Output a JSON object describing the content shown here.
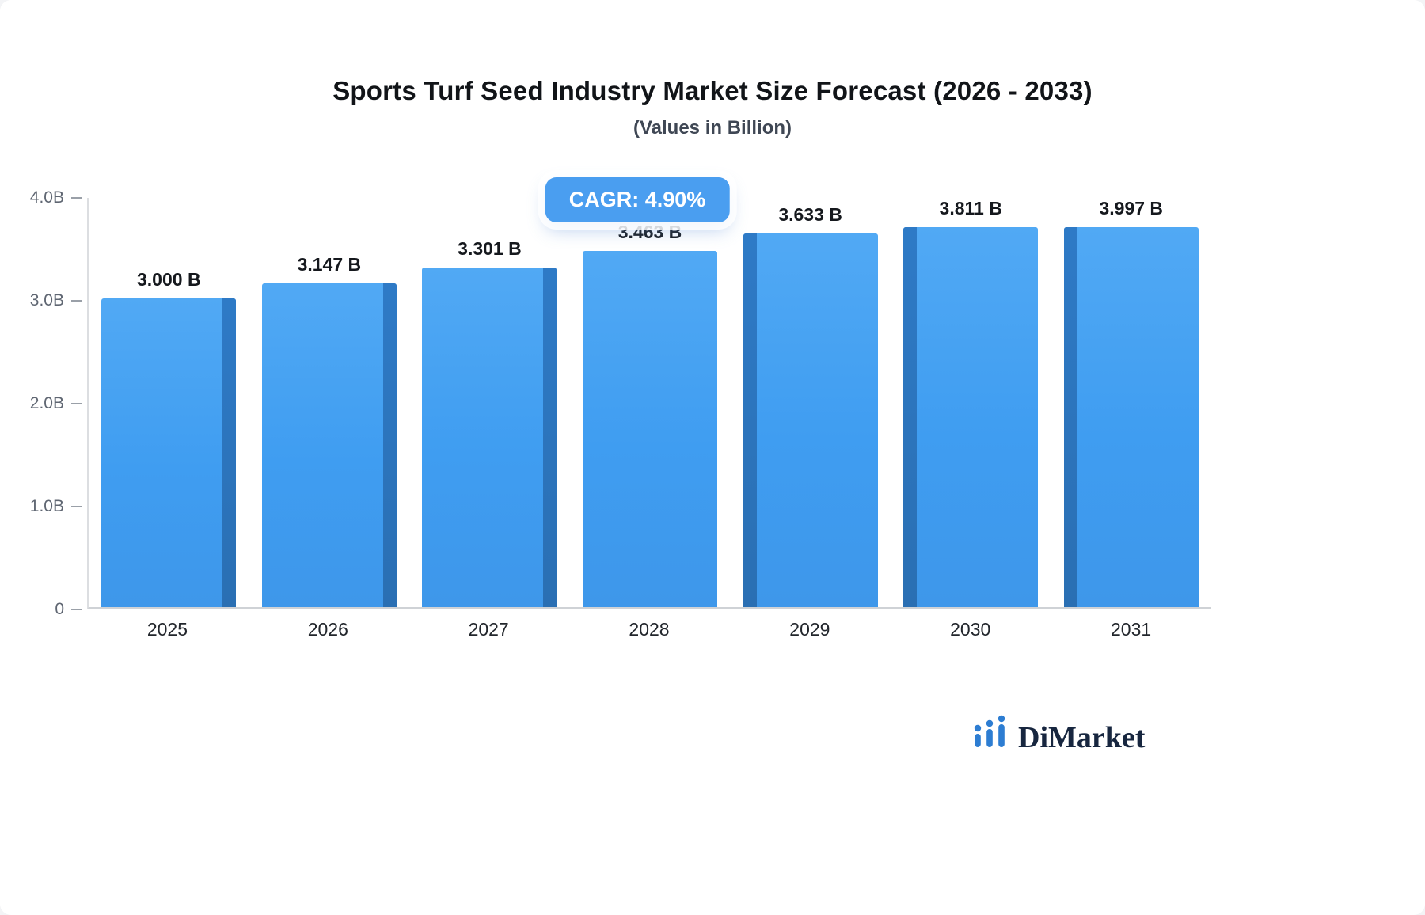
{
  "header": {
    "title": "Sports Turf Seed Industry Market Size Forecast (2026 - 2033)",
    "subtitle": "(Values in Billion)"
  },
  "badge": {
    "label": "CAGR: 4.90%"
  },
  "brand": {
    "name": "DiMarket",
    "icon": "bar-chart-logo-icon"
  },
  "colors": {
    "bar": "#3f9df1",
    "bar_edge": "#2a6fb3",
    "badge_bg": "#4a9ef0",
    "axis": "#cfd2d6",
    "title_text": "#111418",
    "brand_text": "#17263f"
  },
  "chart_data": {
    "type": "bar",
    "title": "Sports Turf Seed Industry Market Size Forecast (2026 - 2033)",
    "subtitle": "(Values in Billion)",
    "categories": [
      "2025",
      "2026",
      "2027",
      "2028",
      "2029",
      "2030",
      "2031"
    ],
    "values": [
      3.0,
      3.147,
      3.301,
      3.463,
      3.633,
      3.811,
      3.997
    ],
    "value_labels": [
      "3.000 B",
      "3.147 B",
      "3.301 B",
      "3.463 B",
      "3.633 B",
      "3.811 B",
      "3.997 B"
    ],
    "shade_side": [
      "right",
      "right",
      "right",
      "none",
      "left",
      "left",
      "left"
    ],
    "xlabel": "",
    "ylabel": "",
    "ylim": [
      0,
      4
    ],
    "yticks": [
      {
        "value": 0,
        "label": "0"
      },
      {
        "value": 1,
        "label": "1.0B"
      },
      {
        "value": 2,
        "label": "2.0B"
      },
      {
        "value": 3,
        "label": "3.0B"
      },
      {
        "value": 4,
        "label": "4.0B"
      }
    ],
    "grid": false,
    "legend": "none",
    "annotation": "CAGR: 4.90%"
  }
}
